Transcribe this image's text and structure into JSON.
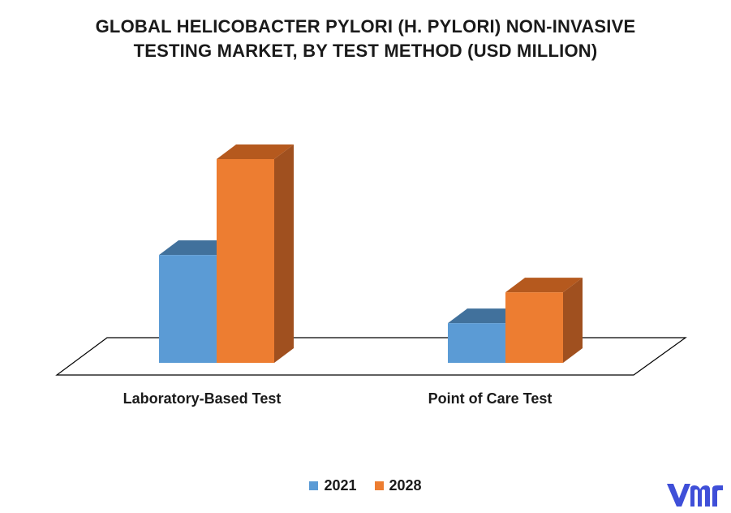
{
  "chart_data": {
    "type": "bar",
    "title_lines": [
      "GLOBAL HELICOBACTER PYLORI (H. PYLORI) NON-INVASIVE",
      "TESTING MARKET, BY TEST METHOD (USD MILLION)"
    ],
    "categories": [
      "Laboratory-Based Test",
      "Point of Care Test"
    ],
    "series": [
      {
        "name": "2021",
        "values": [
          136,
          50
        ],
        "color": "#5B9BD5",
        "top_color": "#41719C",
        "side_color": "#3E6FA0"
      },
      {
        "name": "2028",
        "values": [
          257,
          89
        ],
        "color": "#ED7D31",
        "top_color": "#B5591E",
        "side_color": "#A0501F"
      }
    ],
    "ylim": [
      0,
      280
    ],
    "style": "3d-clustered-column",
    "grid": false,
    "legend_position": "bottom"
  },
  "brand": {
    "logo_text": "vmr",
    "color": "#3F4FD8"
  }
}
